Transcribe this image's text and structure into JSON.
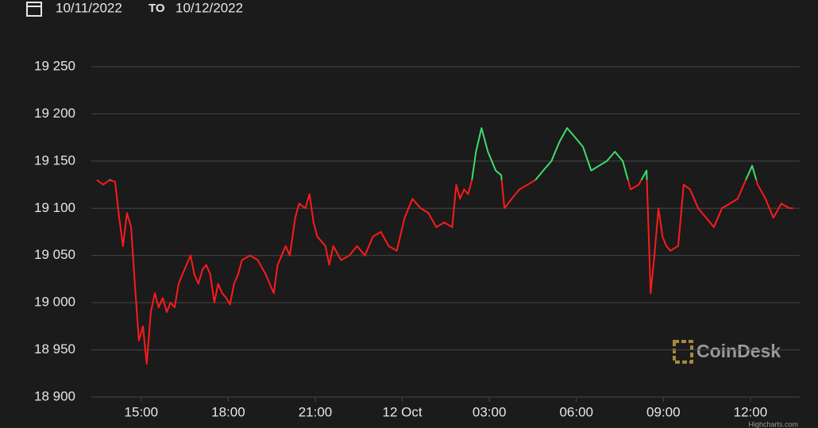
{
  "header": {
    "from": "10/11/2022",
    "separator": "TO",
    "to": "10/12/2022"
  },
  "watermark": "CoinDesk",
  "credits": "Highcharts.com",
  "chart_data": {
    "type": "line",
    "x": [
      13.47,
      13.69,
      13.91,
      14.1,
      14.24,
      14.37,
      14.51,
      14.65,
      14.78,
      14.92,
      15.06,
      15.19,
      15.33,
      15.47,
      15.6,
      15.74,
      15.88,
      16.01,
      16.15,
      16.29,
      16.42,
      16.7,
      16.83,
      16.97,
      17.11,
      17.24,
      17.38,
      17.52,
      17.65,
      17.79,
      17.93,
      18.06,
      18.2,
      18.34,
      18.47,
      18.75,
      19.02,
      19.29,
      19.57,
      19.7,
      19.98,
      20.12,
      20.31,
      20.44,
      20.66,
      20.8,
      20.94,
      21.07,
      21.35,
      21.48,
      21.62,
      21.89,
      22.17,
      22.44,
      22.71,
      22.99,
      23.26,
      23.53,
      23.81,
      24.08,
      24.35,
      24.63,
      24.9,
      25.17,
      25.45,
      25.72,
      25.86,
      25.99,
      26.13,
      26.27,
      26.4,
      26.54,
      26.73,
      26.95,
      27.22,
      27.41,
      27.52,
      27.77,
      28.04,
      28.32,
      28.59,
      28.86,
      29.14,
      29.41,
      29.68,
      29.96,
      30.23,
      30.51,
      30.78,
      31.05,
      31.33,
      31.6,
      31.87,
      32.15,
      32.42,
      32.56,
      32.69,
      32.83,
      32.97,
      33.1,
      33.24,
      33.51,
      33.7,
      33.92,
      34.2,
      34.47,
      34.74,
      35.02,
      35.29,
      35.56,
      35.84,
      36.06,
      36.25,
      36.52,
      36.79,
      37.07,
      37.34,
      37.47
    ],
    "series": [
      {
        "values": [
          19130,
          19125,
          19130,
          19128,
          19090,
          19060,
          19095,
          19080,
          19020,
          18960,
          18975,
          18935,
          18990,
          19010,
          18995,
          19005,
          18990,
          19000,
          18995,
          19020,
          19030,
          19050,
          19030,
          19020,
          19035,
          19040,
          19030,
          19000,
          19020,
          19010,
          19005,
          18998,
          19020,
          19030,
          19045,
          19050,
          19045,
          19030,
          19010,
          19040,
          19060,
          19050,
          19090,
          19105,
          19100,
          19115,
          19085,
          19070,
          19060,
          19040,
          19060,
          19045,
          19050,
          19060,
          19050,
          19070,
          19075,
          19060,
          19055,
          19090,
          19110,
          19100,
          19095,
          19080,
          19085,
          19080,
          19125,
          19110,
          19120,
          19115,
          19130,
          19160,
          19185,
          19160,
          19140,
          19135,
          19100,
          19110,
          19120,
          19125,
          19130,
          19140,
          19150,
          19170,
          19185,
          19175,
          19165,
          19140,
          19145,
          19150,
          19160,
          19150,
          19120,
          19125,
          19140,
          19010,
          19050,
          19100,
          19070,
          19060,
          19055,
          19060,
          19125,
          19120,
          19100,
          19090,
          19080,
          19100,
          19105,
          19110,
          19130,
          19145,
          19125,
          19110,
          19090,
          19105,
          19100,
          19100
        ]
      }
    ],
    "threshold": 19130,
    "color_above": "#3ddc6c",
    "color_below": "#ff1a1a",
    "xlim": [
      13.28,
      37.7
    ],
    "xticks": [
      {
        "value": 15,
        "label": "15:00"
      },
      {
        "value": 18,
        "label": "18:00"
      },
      {
        "value": 21,
        "label": "21:00"
      },
      {
        "value": 24,
        "label": "12 Oct"
      },
      {
        "value": 27,
        "label": "03:00"
      },
      {
        "value": 30,
        "label": "06:00"
      },
      {
        "value": 33,
        "label": "09:00"
      },
      {
        "value": 36,
        "label": "12:00"
      }
    ],
    "ylim": [
      18900,
      19250
    ],
    "yticks": [
      {
        "value": 18900,
        "label": "18 900"
      },
      {
        "value": 18950,
        "label": "18 950"
      },
      {
        "value": 19000,
        "label": "19 000"
      },
      {
        "value": 19050,
        "label": "19 050"
      },
      {
        "value": 19100,
        "label": "19 100"
      },
      {
        "value": 19150,
        "label": "19 150"
      },
      {
        "value": 19200,
        "label": "19 200"
      },
      {
        "value": 19250,
        "label": "19 250"
      }
    ],
    "grid": true
  }
}
